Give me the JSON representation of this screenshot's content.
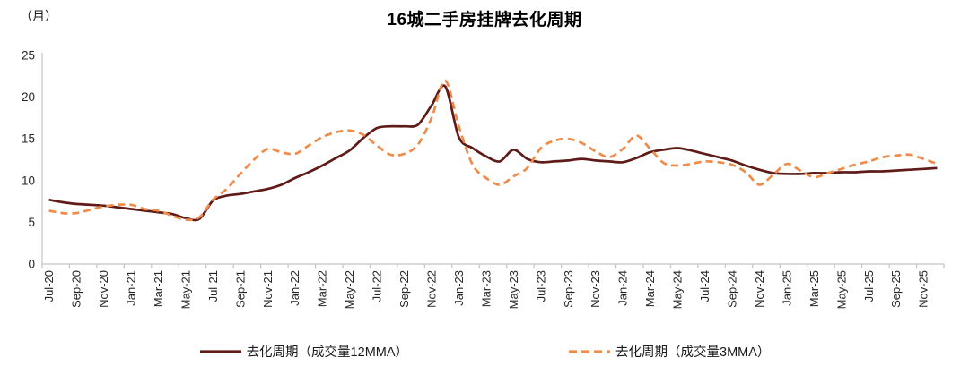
{
  "header": {
    "unit_label": "（月）",
    "title": "16城二手房挂牌去化周期"
  },
  "chart_data": {
    "type": "line",
    "title": "16城二手房挂牌去化周期",
    "y_axis": {
      "unit": "月",
      "min": 0,
      "max": 25,
      "ticks": [
        0,
        5,
        10,
        15,
        20,
        25
      ]
    },
    "x_tick_every": 2,
    "grid": false,
    "legend_position": "bottom",
    "axis_color": "#c3c3c3",
    "label_color": "#262626",
    "categories": [
      "Jul-20",
      "Aug-20",
      "Sep-20",
      "Oct-20",
      "Nov-20",
      "Dec-20",
      "Jan-21",
      "Feb-21",
      "Mar-21",
      "Apr-21",
      "May-21",
      "Jun-21",
      "Jul-21",
      "Aug-21",
      "Sep-21",
      "Oct-21",
      "Nov-21",
      "Dec-21",
      "Jan-22",
      "Feb-22",
      "Mar-22",
      "Apr-22",
      "May-22",
      "Jun-22",
      "Jul-22",
      "Aug-22",
      "Sep-22",
      "Oct-22",
      "Nov-22",
      "Dec-22",
      "Jan-23",
      "Feb-23",
      "Mar-23",
      "Apr-23",
      "May-23",
      "Jun-23",
      "Jul-23",
      "Aug-23",
      "Sep-23",
      "Oct-23",
      "Nov-23",
      "Dec-23",
      "Jan-24",
      "Feb-24",
      "Mar-24",
      "Apr-24",
      "May-24",
      "Jun-24",
      "Jul-24",
      "Aug-24",
      "Sep-24",
      "Oct-24",
      "Nov-24",
      "Dec-24",
      "Jan-25",
      "Feb-25",
      "Mar-25",
      "Apr-25",
      "May-25",
      "Jun-25",
      "Jul-25",
      "Aug-25",
      "Sep-25",
      "Oct-25",
      "Nov-25",
      "Dec-25"
    ],
    "series": [
      {
        "name": "去化周期（成交量12MMA）",
        "line_style": "solid",
        "color": "#5f1b17",
        "values": [
          7.7,
          7.4,
          7.2,
          7.1,
          7.0,
          6.8,
          6.6,
          6.4,
          6.2,
          6.0,
          5.5,
          5.4,
          7.6,
          8.2,
          8.4,
          8.7,
          9.0,
          9.5,
          10.3,
          11.0,
          11.8,
          12.7,
          13.6,
          15.1,
          16.3,
          16.5,
          16.5,
          16.7,
          19.0,
          21.3,
          15.2,
          13.9,
          12.9,
          12.3,
          13.7,
          12.6,
          12.2,
          12.3,
          12.4,
          12.6,
          12.4,
          12.3,
          12.2,
          12.7,
          13.4,
          13.7,
          13.9,
          13.6,
          13.2,
          12.8,
          12.4,
          11.8,
          11.3,
          10.9,
          10.8,
          10.8,
          10.9,
          10.9,
          11.0,
          11.0,
          11.1,
          11.1,
          11.2,
          11.3,
          11.4,
          11.5
        ]
      },
      {
        "name": "去化周期（成交量3MMA）",
        "line_style": "dashed",
        "color": "#ef8c4b",
        "values": [
          6.4,
          6.1,
          6.1,
          6.5,
          6.9,
          7.1,
          7.1,
          6.6,
          6.4,
          5.8,
          5.3,
          5.6,
          7.7,
          9.0,
          10.8,
          12.5,
          13.8,
          13.4,
          13.2,
          14.2,
          15.2,
          15.8,
          16.0,
          15.5,
          14.2,
          13.1,
          13.2,
          14.3,
          17.5,
          22.0,
          16.5,
          11.9,
          10.3,
          9.5,
          10.5,
          11.5,
          13.9,
          14.8,
          15.0,
          14.5,
          13.5,
          12.8,
          13.8,
          15.4,
          13.8,
          12.1,
          11.8,
          12.0,
          12.3,
          12.2,
          11.9,
          11.0,
          9.5,
          10.7,
          12.0,
          11.2,
          10.4,
          10.9,
          11.4,
          11.9,
          12.3,
          12.8,
          13.0,
          13.1,
          12.6,
          12.0
        ]
      }
    ]
  }
}
